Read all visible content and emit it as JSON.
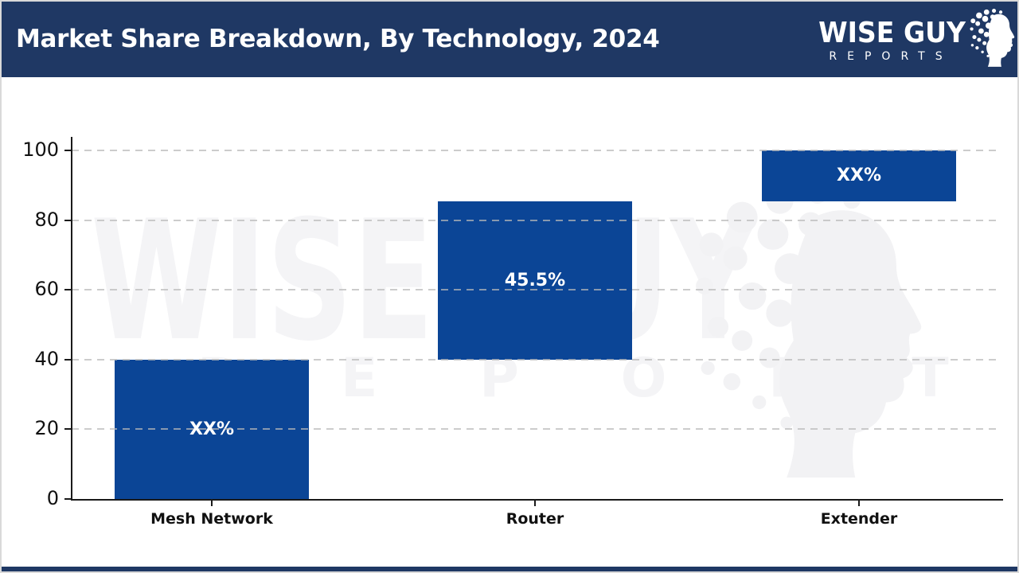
{
  "header": {
    "title": "Market Share Breakdown, By Technology, 2024",
    "logo": {
      "line1": "WISE GUY",
      "line2": "REPORTS"
    }
  },
  "watermark": {
    "line1": "WISE GUY",
    "line2": "REPORTS"
  },
  "chart_data": {
    "type": "bar",
    "subtype": "floating-waterfall",
    "title": "Market Share Breakdown, By Technology, 2024",
    "categories": [
      "Mesh Network",
      "Router",
      "Extender"
    ],
    "bars": [
      {
        "category": "Mesh Network",
        "start": 0,
        "end": 40,
        "label": "XX%"
      },
      {
        "category": "Router",
        "start": 40,
        "end": 85.5,
        "label": "45.5%"
      },
      {
        "category": "Extender",
        "start": 85.5,
        "end": 100,
        "label": "XX%"
      }
    ],
    "ylim": [
      0,
      100
    ],
    "yticks": [
      0,
      20,
      40,
      60,
      80,
      100
    ],
    "grid": "horizontal-dashed",
    "bar_color": "#0b4596",
    "colors": {
      "header_navy": "#1f3864",
      "grid_gray": "#c9c9c9",
      "watermark_gray": "#f4f4f6"
    }
  }
}
